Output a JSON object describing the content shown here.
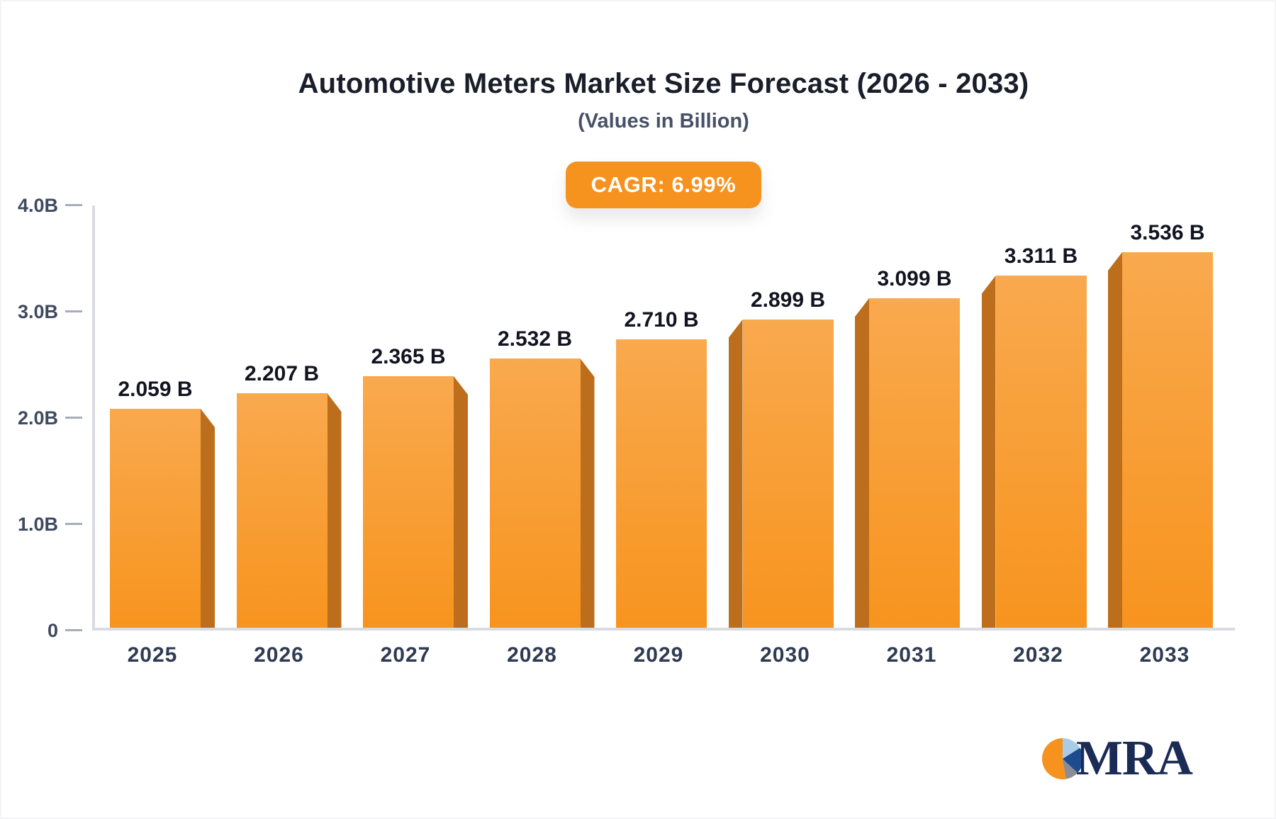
{
  "title": "Automotive Meters Market Size Forecast (2026 - 2033)",
  "subtitle": "(Values in Billion)",
  "badge": {
    "label": "CAGR: 6.99%"
  },
  "logo": {
    "text": "MRA",
    "icon": "pie-chart-icon"
  },
  "colors": {
    "badge_bg": "#F6921E",
    "bar_top": "#F9A94E",
    "bar_bottom": "#F7941E",
    "bar_side": "#BC6E1C",
    "axis_line": "#D9DBE1",
    "tick": "#A7AEB9",
    "y_label": "#3E4A5E",
    "x_label": "#2F3B52",
    "value_label": "#111420",
    "title": "#191E2A",
    "subtitle": "#475166"
  },
  "chart_data": {
    "type": "bar",
    "categories": [
      "2025",
      "2026",
      "2027",
      "2028",
      "2029",
      "2030",
      "2031",
      "2032",
      "2033"
    ],
    "values": [
      2.059,
      2.207,
      2.365,
      2.532,
      2.71,
      2.899,
      3.099,
      3.311,
      3.536
    ],
    "value_label_suffix": " B",
    "value_labels": [
      "2.059 B",
      "2.207 B",
      "2.365 B",
      "2.532 B",
      "2.710 B",
      "2.899 B",
      "3.099 B",
      "3.311 B",
      "3.536 B"
    ],
    "title": "Automotive Meters Market Size Forecast (2026 - 2033)",
    "subtitle": "(Values in Billion)",
    "annotation": "CAGR: 6.99%",
    "xlabel": "",
    "ylabel": "",
    "ylim": [
      0,
      4.0
    ],
    "ytick_labels": [
      "0",
      "1.0B",
      "2.0B",
      "3.0B",
      "4.0B"
    ],
    "ytick_values": [
      0,
      1.0,
      2.0,
      3.0,
      4.0
    ],
    "grid": false,
    "legend": false,
    "bar_style": "3d-extruded, side faces toward center, orange gradient"
  }
}
